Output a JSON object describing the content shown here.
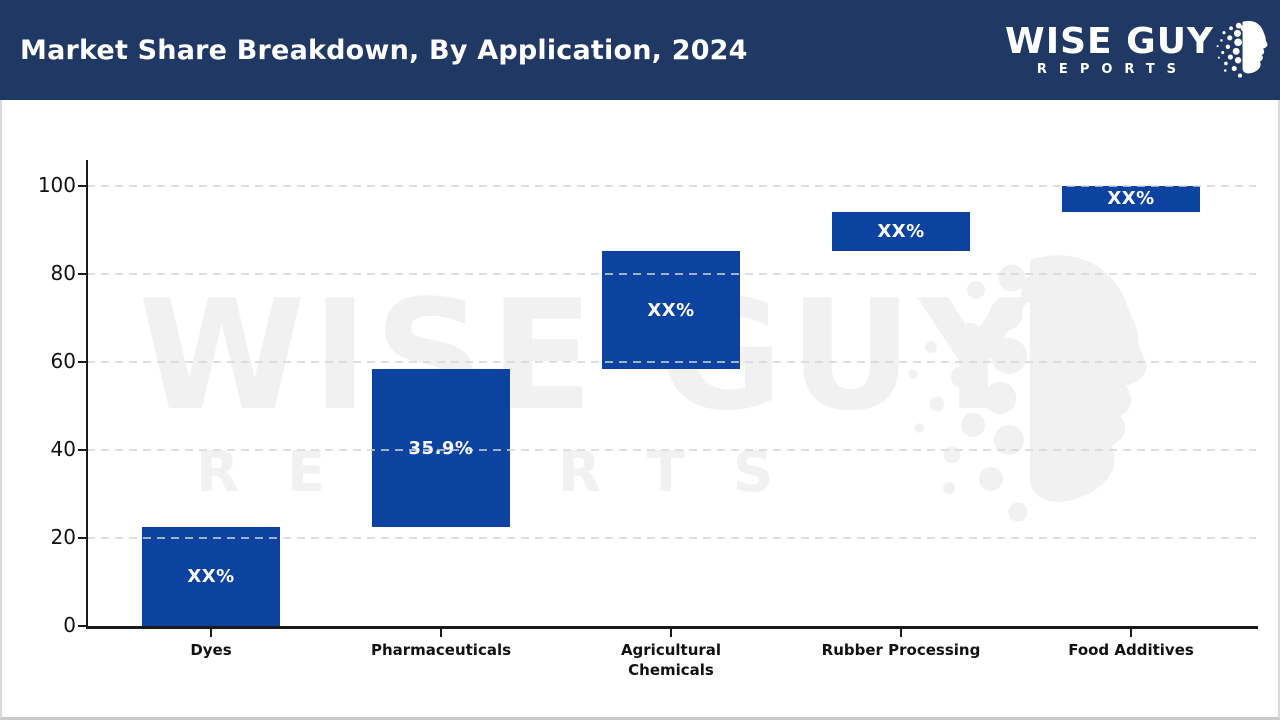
{
  "header": {
    "title": "Market Share Breakdown, By Application, 2024",
    "logo": {
      "primary": "WISE GUY",
      "secondary": "REPORTS"
    }
  },
  "watermark": {
    "primary": "WISE GUY",
    "secondary": "REPORTS"
  },
  "colors": {
    "header_background": "#203864",
    "header_text": "#ffffff",
    "bar_fill": "#0c43a0",
    "bar_label_text": "#ffffff",
    "axis_line": "#1a1a1a",
    "tick_label_text": "#111111",
    "gridline": "#d6d6d6",
    "watermark_text": "#f1f1f1",
    "page_border": "#c9c9c9"
  },
  "chart_data": {
    "type": "bar",
    "subtype": "waterfall",
    "orientation": "vertical",
    "title": "Market Share Breakdown, By Application, 2024",
    "xlabel": "",
    "ylabel": "",
    "ylim": [
      0,
      100
    ],
    "yticks": [
      0,
      20,
      40,
      60,
      80,
      100
    ],
    "grid": {
      "horizontal": true,
      "style": "dashed",
      "above_bars": true
    },
    "legend": "none",
    "categories": [
      "Dyes",
      "Pharmaceuticals",
      "Agricultural Chemicals",
      "Rubber Processing",
      "Food Additives"
    ],
    "bars": [
      {
        "category": "Dyes",
        "start": 0,
        "end": 22.4,
        "value": 22.4,
        "label": "XX%"
      },
      {
        "category": "Pharmaceuticals",
        "start": 22.4,
        "end": 58.3,
        "value": 35.9,
        "label": "35.9%"
      },
      {
        "category": "Agricultural Chemicals",
        "start": 58.3,
        "end": 85.3,
        "value": 27.0,
        "label": "XX%"
      },
      {
        "category": "Rubber Processing",
        "start": 85.3,
        "end": 94.1,
        "value": 8.8,
        "label": "XX%"
      },
      {
        "category": "Food Additives",
        "start": 94.1,
        "end": 100.0,
        "value": 5.9,
        "label": "XX%"
      }
    ]
  }
}
